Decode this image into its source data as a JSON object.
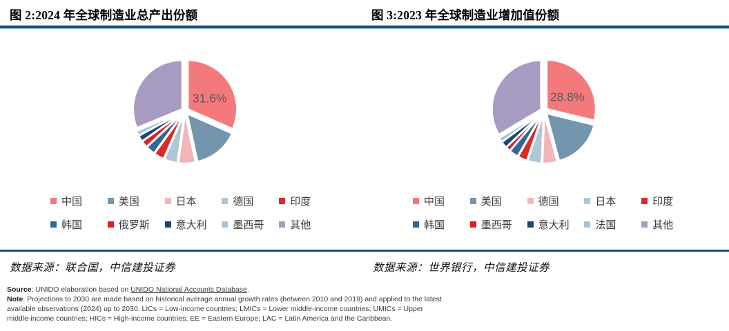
{
  "accent_color": "#17507C",
  "charts": [
    {
      "title": "图 2:2024 年全球制造业总产出份额",
      "source": "数据来源：联合国，中信建投证券",
      "chart_data": {
        "type": "pie",
        "title": "2024 年全球制造业总产出份额",
        "data_label": "31.6%",
        "data_label_color": "#595959",
        "legend_position": "bottom",
        "categories": [
          "中国",
          "美国",
          "日本",
          "德国",
          "印度",
          "韩国",
          "俄罗斯",
          "意大利",
          "墨西哥",
          "其他"
        ],
        "values": [
          31.6,
          15.0,
          5.6,
          4.4,
          3.4,
          3.0,
          2.2,
          2.0,
          1.6,
          31.2
        ],
        "colors": [
          "#F4797B",
          "#7495AE",
          "#F2B5B8",
          "#AFC6D6",
          "#D92B28",
          "#30689A",
          "#E31E24",
          "#1C4770",
          "#9DC8DC",
          "#A79BC1"
        ]
      }
    },
    {
      "title": "图 3:2023 年全球制造业增加值份额",
      "source": "数据来源：世界银行，中信建投证券",
      "chart_data": {
        "type": "pie",
        "title": "2023 年全球制造业增加值份额",
        "data_label": "28.8%",
        "data_label_color": "#595959",
        "legend_position": "bottom",
        "categories": [
          "中国",
          "美国",
          "德国",
          "日本",
          "印度",
          "韩国",
          "墨西哥",
          "意大利",
          "法国",
          "其他"
        ],
        "values": [
          28.8,
          17.0,
          4.8,
          4.6,
          3.1,
          3.0,
          1.5,
          2.1,
          1.5,
          33.6
        ],
        "colors": [
          "#F4797B",
          "#7495AE",
          "#F2B5B8",
          "#AFC6D6",
          "#D92B28",
          "#30689A",
          "#E31E24",
          "#1C4770",
          "#9DC8DC",
          "#A79BC1"
        ]
      }
    }
  ],
  "footnote": {
    "source_label": "Source",
    "source_text": ": UNIDO elaboration based on ",
    "source_link": "UNIDO National Accounts Database",
    "source_suffix": ".",
    "note_label": "Note",
    "note_text": ": Projections to 2030 are made based on historical average annual growth rates (between 2010 and 2019) and applied to the latest available observations (2024) up to 2030. LICs = Low-income countries; LMICs = Lower middle-income countries; UMICs = Upper middle-income countries; HICs = High-income countries; EE = Eastern Europe; LAC = Latin America and the Caribbean."
  }
}
